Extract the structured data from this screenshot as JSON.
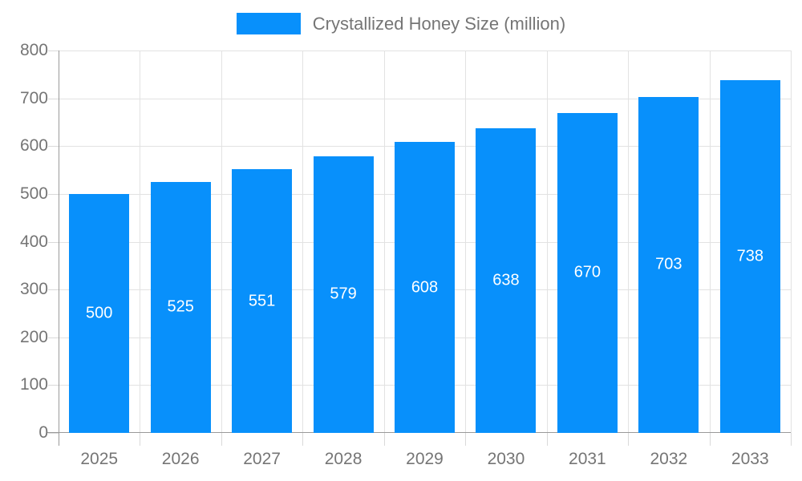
{
  "chart_data": {
    "type": "bar",
    "categories": [
      "2025",
      "2026",
      "2027",
      "2028",
      "2029",
      "2030",
      "2031",
      "2032",
      "2033"
    ],
    "values": [
      500,
      525,
      551,
      579,
      608,
      638,
      670,
      703,
      738
    ],
    "series": [
      {
        "name": "Crystallized Honey Size (million)",
        "values": [
          500,
          525,
          551,
          579,
          608,
          638,
          670,
          703,
          738
        ]
      }
    ],
    "title": "",
    "xlabel": "",
    "ylabel": "",
    "ylim": [
      0,
      800
    ],
    "ytick_step": 100,
    "y_tick_labels": [
      "0",
      "100",
      "200",
      "300",
      "400",
      "500",
      "600",
      "700",
      "800"
    ],
    "grid": true,
    "legend_position": "top-center",
    "bar_labels_visible": true
  },
  "legend": {
    "label": "Crystallized Honey Size (million)",
    "swatch_color": "#0890fb"
  },
  "colors": {
    "bar_fill": "#0890fb",
    "bar_value_text": "#ffffff",
    "axis_text": "#757575",
    "axis_line": "#9a9a9a",
    "gridline": "#e2e2e2",
    "background": "#ffffff"
  }
}
